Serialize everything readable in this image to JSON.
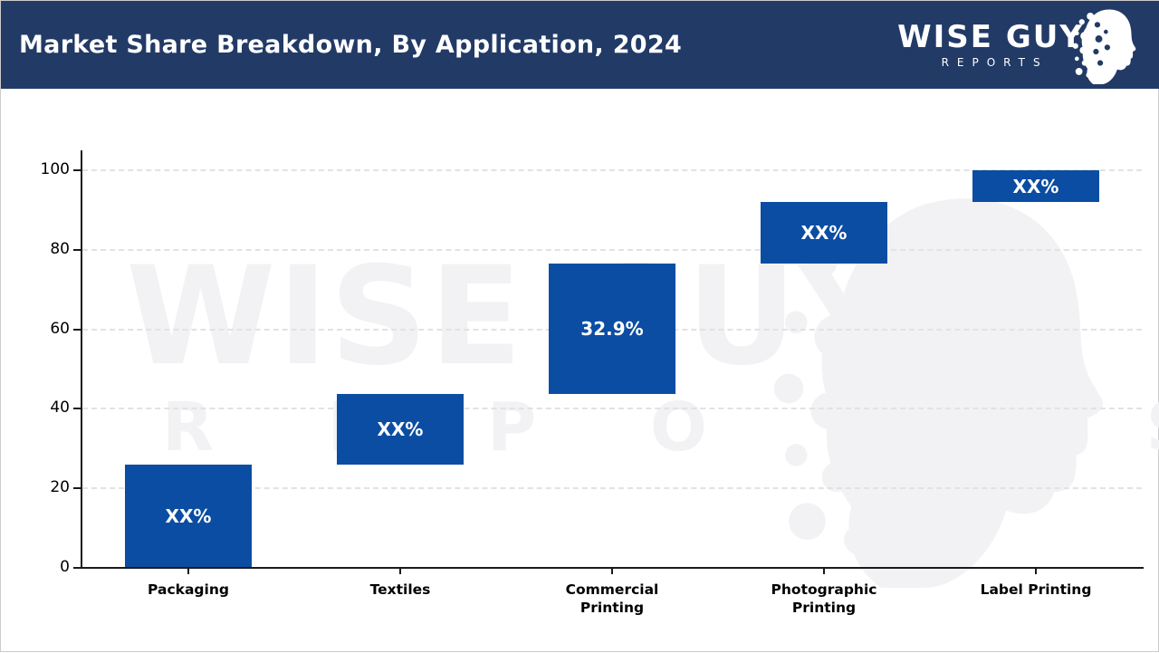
{
  "header": {
    "title": "Market Share Breakdown, By Application, 2024",
    "logo": {
      "line1": "WISE GUY",
      "line2": "REPORTS"
    }
  },
  "watermark": {
    "line1": "WISE GUY",
    "line2": "R E P O R T S"
  },
  "colors": {
    "header_bg": "#223A66",
    "bar": "#0B4DA2",
    "watermark": "#F2F2F4",
    "gridline": "#E2E2E2",
    "axis": "#1A1A1A",
    "bar_label_text": "#FFFFFF"
  },
  "chart_data": {
    "type": "bar",
    "subtype": "waterfall-percentage",
    "title": "Market Share Breakdown, By Application, 2024",
    "categories": [
      "Packaging",
      "Textiles",
      "Commercial Printing",
      "Photographic Printing",
      "Label Printing"
    ],
    "category_label_lines": [
      [
        "Packaging"
      ],
      [
        "Textiles"
      ],
      [
        "Commercial",
        "Printing"
      ],
      [
        "Photographic",
        "Printing"
      ],
      [
        "Label Printing"
      ]
    ],
    "segments": [
      {
        "category": "Packaging",
        "start": 0,
        "end": 26,
        "label": "XX%"
      },
      {
        "category": "Textiles",
        "start": 26,
        "end": 43.7,
        "label": "XX%"
      },
      {
        "category": "Commercial Printing",
        "start": 43.7,
        "end": 76.6,
        "label": "32.9%"
      },
      {
        "category": "Photographic Printing",
        "start": 76.6,
        "end": 92,
        "label": "XX%"
      },
      {
        "category": "Label Printing",
        "start": 92,
        "end": 100,
        "label": "XX%"
      }
    ],
    "ylim": [
      0,
      100
    ],
    "yticks": [
      0,
      20,
      40,
      60,
      80,
      100
    ],
    "xlabel": "",
    "ylabel": "",
    "grid": "horizontal dashed",
    "legend": "none",
    "bar_color": "#0B4DA2"
  }
}
